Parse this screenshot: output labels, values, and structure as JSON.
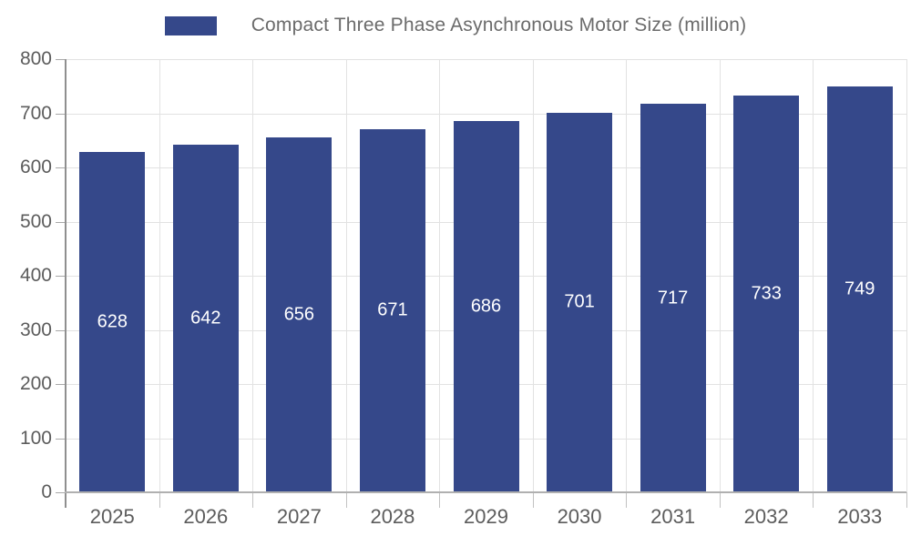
{
  "chart_data": {
    "type": "bar",
    "title": "Compact Three Phase Asynchronous Motor Size (million)",
    "series_name": "Compact Three Phase Asynchronous Motor Size (million)",
    "categories": [
      "2025",
      "2026",
      "2027",
      "2028",
      "2029",
      "2030",
      "2031",
      "2032",
      "2033"
    ],
    "values": [
      628,
      642,
      656,
      671,
      686,
      701,
      717,
      733,
      749
    ],
    "value_labels": [
      "628",
      "642",
      "656",
      "671",
      "686",
      "701",
      "717",
      "733",
      "749"
    ],
    "xlabel": "",
    "ylabel": "",
    "ylim": [
      0,
      800
    ],
    "yticks": [
      0,
      100,
      200,
      300,
      400,
      500,
      600,
      700,
      800
    ],
    "grid": true,
    "legend_position": "top",
    "colors": {
      "bar": "#35488a",
      "value_label": "#ffffff",
      "gridline": "#e2e2e2",
      "y_axis_line": "#8f8f8f",
      "x_axis_line": "#b0b0b0",
      "tick_label": "#5c5c5c",
      "legend_text": "#6b6b6b",
      "background": "#ffffff"
    }
  }
}
